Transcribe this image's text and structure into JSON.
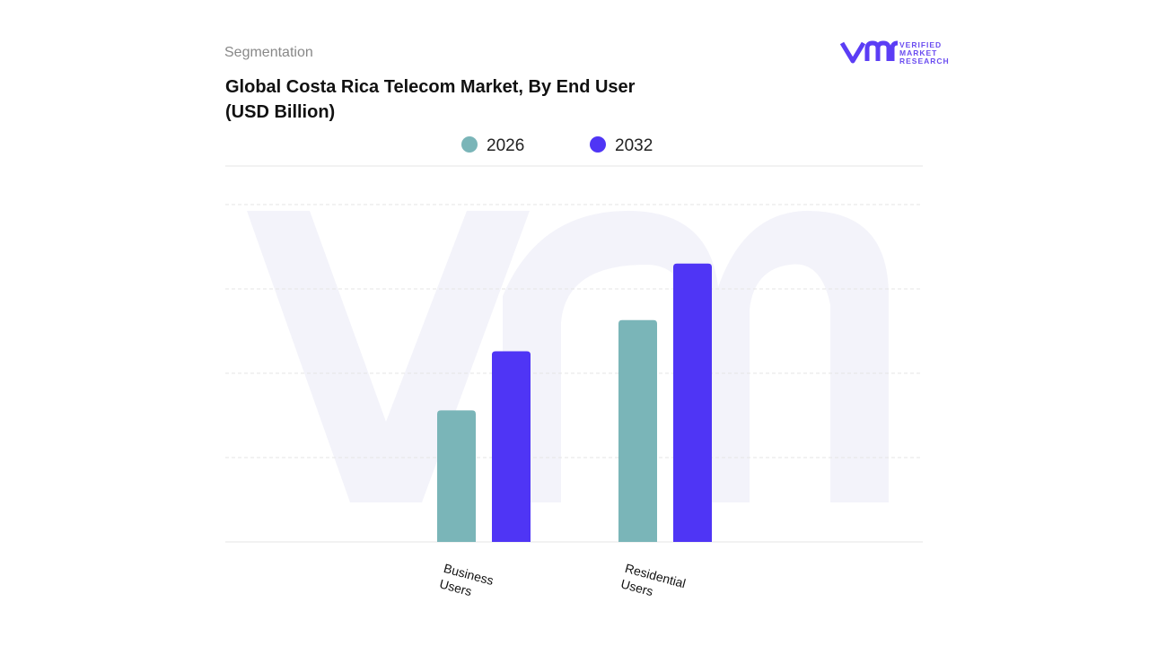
{
  "header": {
    "section": "Segmentation",
    "logo": [
      "VERIFIED",
      "MARKET",
      "RESEARCH"
    ]
  },
  "chart_data": {
    "type": "bar",
    "title": "Global Costa Rica Telecom Market, By End User (USD Billion)",
    "categories": [
      "Business Users",
      "Residential Users"
    ],
    "series": [
      {
        "name": "2026",
        "color": "#7ab5b8",
        "values": [
          1.56,
          2.63
        ]
      },
      {
        "name": "2032",
        "color": "#4f35f5",
        "values": [
          2.26,
          3.3
        ]
      }
    ],
    "ylim": [
      0,
      4
    ],
    "gridlines": [
      1,
      2,
      3,
      4
    ],
    "grid": true
  }
}
